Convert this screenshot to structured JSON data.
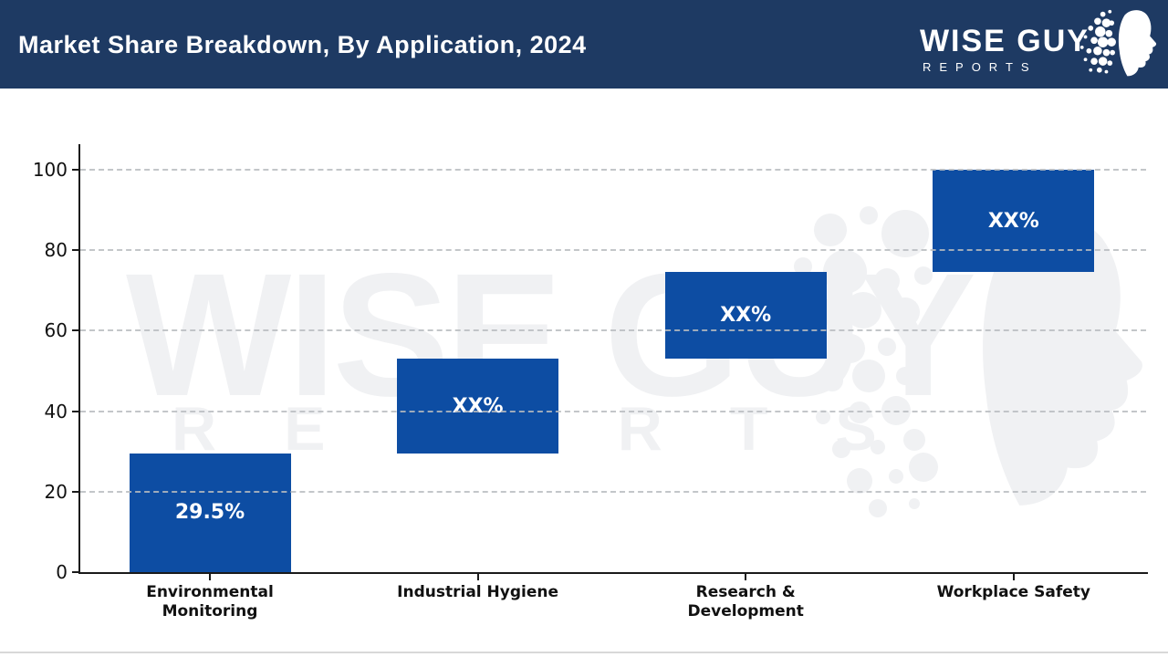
{
  "header": {
    "title": "Market Share Breakdown, By Application, 2024",
    "logo_line1": "WISE GUY",
    "logo_line2": "REPORTS"
  },
  "watermark": {
    "line1": "WISE GUY",
    "line2": "REPORTS"
  },
  "chart_data": {
    "type": "bar",
    "subtype": "floating-segment-waterfall",
    "title": "Market Share Breakdown, By Application, 2024",
    "categories": [
      "Environmental\nMonitoring",
      "Industrial Hygiene",
      "Research &\nDevelopment",
      "Workplace Safety"
    ],
    "segments": [
      {
        "category": "Environmental Monitoring",
        "label": "29.5%",
        "start": 0,
        "end": 29.5
      },
      {
        "category": "Industrial Hygiene",
        "label": "XX%",
        "start": 29.5,
        "end": 53
      },
      {
        "category": "Research & Development",
        "label": "XX%",
        "start": 53,
        "end": 74.5
      },
      {
        "category": "Workplace Safety",
        "label": "XX%",
        "start": 74.5,
        "end": 100
      }
    ],
    "yticks": [
      0,
      20,
      40,
      60,
      80,
      100
    ],
    "ylim": [
      0,
      100
    ],
    "grid": "horizontal-dashed",
    "legend": "none",
    "colors": {
      "bar": "#0d4da3",
      "grid": "#b9bcc0",
      "axis": "#1a1a1a",
      "bar_label_text": "#ffffff",
      "header_bg": "#1e3a63",
      "watermark": "#f0f1f3"
    }
  }
}
